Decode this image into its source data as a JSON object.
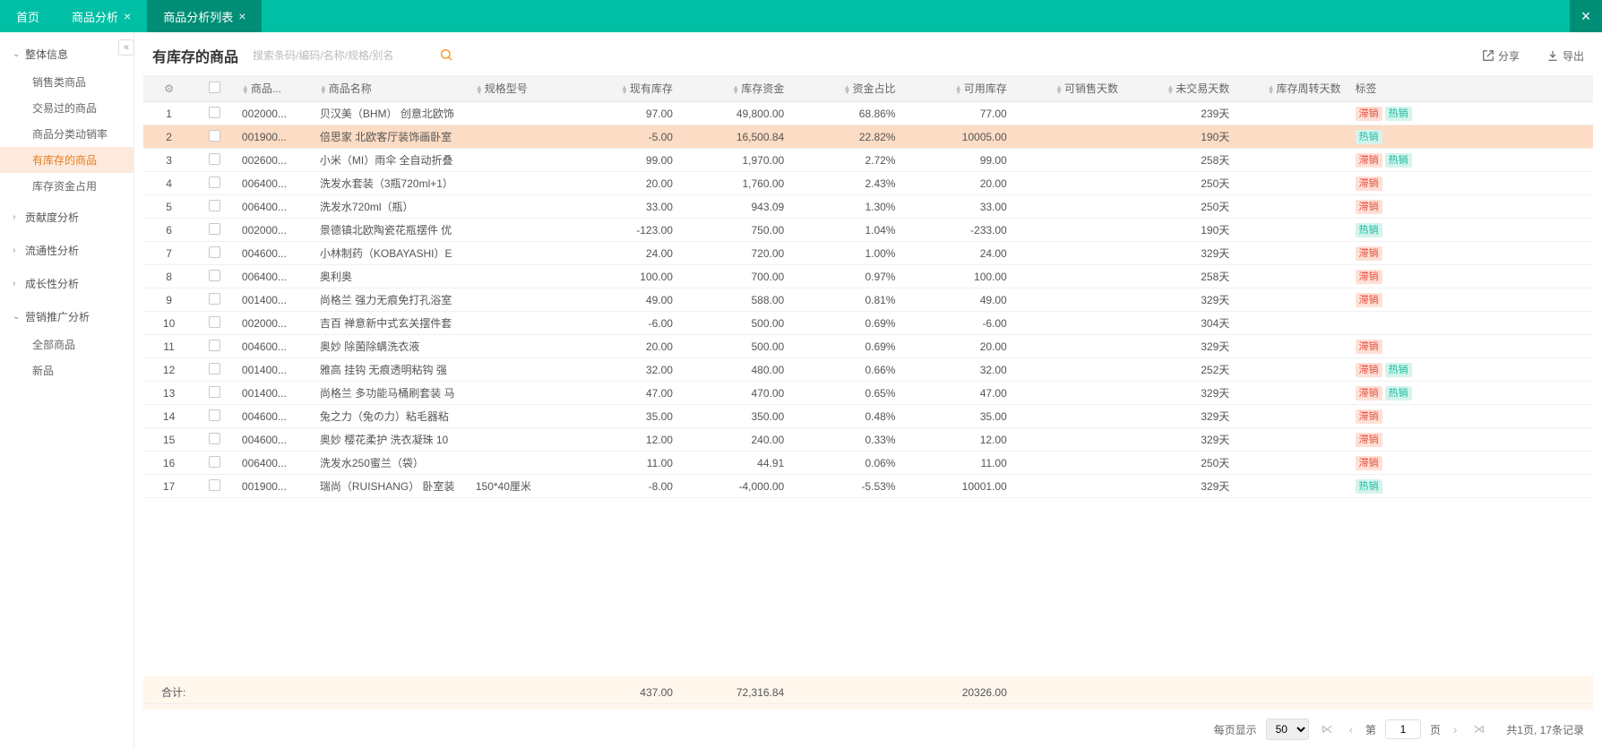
{
  "tabs": [
    {
      "label": "首页",
      "closable": false,
      "active": false
    },
    {
      "label": "商品分析",
      "closable": true,
      "active": false
    },
    {
      "label": "商品分析列表",
      "closable": true,
      "active": true
    }
  ],
  "sidebar": {
    "groups": [
      {
        "title": "整体信息",
        "expanded": true,
        "items": [
          {
            "label": "销售类商品",
            "active": false
          },
          {
            "label": "交易过的商品",
            "active": false
          },
          {
            "label": "商品分类动销率",
            "active": false
          },
          {
            "label": "有库存的商品",
            "active": true
          },
          {
            "label": "库存资金占用",
            "active": false
          }
        ]
      },
      {
        "title": "贡献度分析",
        "expanded": false,
        "items": []
      },
      {
        "title": "流通性分析",
        "expanded": false,
        "items": []
      },
      {
        "title": "成长性分析",
        "expanded": false,
        "items": []
      },
      {
        "title": "营销推广分析",
        "expanded": true,
        "items": [
          {
            "label": "全部商品",
            "active": false
          },
          {
            "label": "新品",
            "active": false
          }
        ]
      }
    ]
  },
  "toolbar": {
    "title": "有库存的商品",
    "search_placeholder": "搜索条码/编码/名称/规格/别名",
    "share_label": "分享",
    "export_label": "导出"
  },
  "columns": [
    {
      "key": "idx",
      "label": "",
      "align": "center",
      "sort": false
    },
    {
      "key": "chk",
      "label": "",
      "align": "center",
      "sort": false
    },
    {
      "key": "code",
      "label": "商品...",
      "align": "left",
      "sort": true
    },
    {
      "key": "name",
      "label": "商品名称",
      "align": "left",
      "sort": true
    },
    {
      "key": "spec",
      "label": "规格型号",
      "align": "left",
      "sort": true
    },
    {
      "key": "stock",
      "label": "现有库存",
      "align": "right",
      "sort": true
    },
    {
      "key": "capital",
      "label": "库存资金",
      "align": "right",
      "sort": true
    },
    {
      "key": "ratio",
      "label": "资金占比",
      "align": "right",
      "sort": true
    },
    {
      "key": "avail",
      "label": "可用库存",
      "align": "right",
      "sort": true
    },
    {
      "key": "saleDays",
      "label": "可销售天数",
      "align": "right",
      "sort": true
    },
    {
      "key": "noTrade",
      "label": "未交易天数",
      "align": "right",
      "sort": true
    },
    {
      "key": "turnDays",
      "label": "库存周转天数",
      "align": "right",
      "sort": true
    },
    {
      "key": "tags",
      "label": "标签",
      "align": "left",
      "sort": false
    }
  ],
  "rows": [
    {
      "idx": 1,
      "code": "002000...",
      "name": "贝汉美（BHM） 创意北欧饰",
      "spec": "",
      "stock": "97.00",
      "capital": "49,800.00",
      "ratio": "68.86%",
      "avail": "77.00",
      "saleDays": "",
      "noTrade": "239天",
      "turnDays": "",
      "tags": [
        "滞销",
        "热销"
      ],
      "highlight": false
    },
    {
      "idx": 2,
      "code": "001900...",
      "name": "倍思家 北欧客厅装饰画卧室",
      "spec": "",
      "stock": "-5.00",
      "capital": "16,500.84",
      "ratio": "22.82%",
      "avail": "10005.00",
      "saleDays": "",
      "noTrade": "190天",
      "turnDays": "",
      "tags": [
        "热销"
      ],
      "highlight": true
    },
    {
      "idx": 3,
      "code": "002600...",
      "name": "小米（MI）雨伞 全自动折叠",
      "spec": "",
      "stock": "99.00",
      "capital": "1,970.00",
      "ratio": "2.72%",
      "avail": "99.00",
      "saleDays": "",
      "noTrade": "258天",
      "turnDays": "",
      "tags": [
        "滞销",
        "热销"
      ],
      "highlight": false
    },
    {
      "idx": 4,
      "code": "006400...",
      "name": "洗发水套装（3瓶720ml+1）",
      "spec": "",
      "stock": "20.00",
      "capital": "1,760.00",
      "ratio": "2.43%",
      "avail": "20.00",
      "saleDays": "",
      "noTrade": "250天",
      "turnDays": "",
      "tags": [
        "滞销"
      ],
      "highlight": false
    },
    {
      "idx": 5,
      "code": "006400...",
      "name": "洗发水720ml（瓶）",
      "spec": "",
      "stock": "33.00",
      "capital": "943.09",
      "ratio": "1.30%",
      "avail": "33.00",
      "saleDays": "",
      "noTrade": "250天",
      "turnDays": "",
      "tags": [
        "滞销"
      ],
      "highlight": false
    },
    {
      "idx": 6,
      "code": "002000...",
      "name": "景德镇北欧陶瓷花瓶摆件 优",
      "spec": "",
      "stock": "-123.00",
      "capital": "750.00",
      "ratio": "1.04%",
      "avail": "-233.00",
      "saleDays": "",
      "noTrade": "190天",
      "turnDays": "",
      "tags": [
        "热销"
      ],
      "highlight": false
    },
    {
      "idx": 7,
      "code": "004600...",
      "name": "小林制药（KOBAYASHI）E",
      "spec": "",
      "stock": "24.00",
      "capital": "720.00",
      "ratio": "1.00%",
      "avail": "24.00",
      "saleDays": "",
      "noTrade": "329天",
      "turnDays": "",
      "tags": [
        "滞销"
      ],
      "highlight": false
    },
    {
      "idx": 8,
      "code": "006400...",
      "name": "奥利奥",
      "spec": "",
      "stock": "100.00",
      "capital": "700.00",
      "ratio": "0.97%",
      "avail": "100.00",
      "saleDays": "",
      "noTrade": "258天",
      "turnDays": "",
      "tags": [
        "滞销"
      ],
      "highlight": false
    },
    {
      "idx": 9,
      "code": "001400...",
      "name": "尚格兰 强力无痕免打孔浴室",
      "spec": "",
      "stock": "49.00",
      "capital": "588.00",
      "ratio": "0.81%",
      "avail": "49.00",
      "saleDays": "",
      "noTrade": "329天",
      "turnDays": "",
      "tags": [
        "滞销"
      ],
      "highlight": false
    },
    {
      "idx": 10,
      "code": "002000...",
      "name": "吉百 禅意新中式玄关摆件套",
      "spec": "",
      "stock": "-6.00",
      "capital": "500.00",
      "ratio": "0.69%",
      "avail": "-6.00",
      "saleDays": "",
      "noTrade": "304天",
      "turnDays": "",
      "tags": [],
      "highlight": false
    },
    {
      "idx": 11,
      "code": "004600...",
      "name": "奥妙 除菌除螨洗衣液",
      "spec": "",
      "stock": "20.00",
      "capital": "500.00",
      "ratio": "0.69%",
      "avail": "20.00",
      "saleDays": "",
      "noTrade": "329天",
      "turnDays": "",
      "tags": [
        "滞销"
      ],
      "highlight": false
    },
    {
      "idx": 12,
      "code": "001400...",
      "name": "雅高 挂钩 无痕透明粘钩 强",
      "spec": "",
      "stock": "32.00",
      "capital": "480.00",
      "ratio": "0.66%",
      "avail": "32.00",
      "saleDays": "",
      "noTrade": "252天",
      "turnDays": "",
      "tags": [
        "滞销",
        "热销"
      ],
      "highlight": false
    },
    {
      "idx": 13,
      "code": "001400...",
      "name": "尚格兰 多功能马桶刷套装 马",
      "spec": "",
      "stock": "47.00",
      "capital": "470.00",
      "ratio": "0.65%",
      "avail": "47.00",
      "saleDays": "",
      "noTrade": "329天",
      "turnDays": "",
      "tags": [
        "滞销",
        "热销"
      ],
      "highlight": false
    },
    {
      "idx": 14,
      "code": "004600...",
      "name": "兔之力（兔の力）粘毛器粘",
      "spec": "",
      "stock": "35.00",
      "capital": "350.00",
      "ratio": "0.48%",
      "avail": "35.00",
      "saleDays": "",
      "noTrade": "329天",
      "turnDays": "",
      "tags": [
        "滞销"
      ],
      "highlight": false
    },
    {
      "idx": 15,
      "code": "004600...",
      "name": "奥妙 樱花柔护 洗衣凝珠 10",
      "spec": "",
      "stock": "12.00",
      "capital": "240.00",
      "ratio": "0.33%",
      "avail": "12.00",
      "saleDays": "",
      "noTrade": "329天",
      "turnDays": "",
      "tags": [
        "滞销"
      ],
      "highlight": false
    },
    {
      "idx": 16,
      "code": "006400...",
      "name": "洗发水250蜜兰（袋）",
      "spec": "",
      "stock": "11.00",
      "capital": "44.91",
      "ratio": "0.06%",
      "avail": "11.00",
      "saleDays": "",
      "noTrade": "250天",
      "turnDays": "",
      "tags": [
        "滞销"
      ],
      "highlight": false
    },
    {
      "idx": 17,
      "code": "001900...",
      "name": "瑞尚（RUISHANG） 卧室装",
      "spec": "150*40厘米",
      "stock": "-8.00",
      "capital": "-4,000.00",
      "ratio": "-5.53%",
      "avail": "10001.00",
      "saleDays": "",
      "noTrade": "329天",
      "turnDays": "",
      "tags": [
        "热销"
      ],
      "highlight": false
    }
  ],
  "totals": {
    "label": "合计:",
    "stock": "437.00",
    "capital": "72,316.84",
    "avail": "20326.00"
  },
  "pager": {
    "per_page_label": "每页显示",
    "per_page_value": "50",
    "page_prefix": "第",
    "page_value": "1",
    "page_suffix": "页",
    "summary": "共1页, 17条记录"
  },
  "tag_map": {
    "滞销": "zhi",
    "热销": "re"
  }
}
